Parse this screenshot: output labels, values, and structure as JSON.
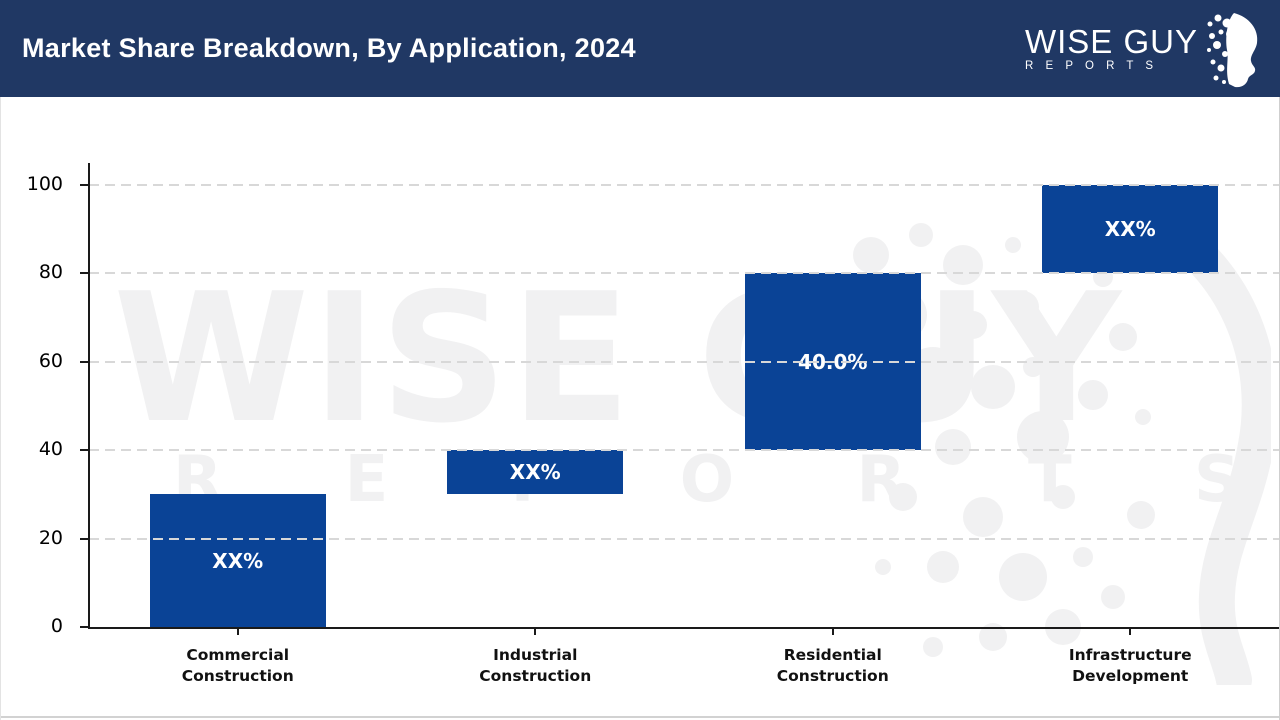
{
  "header": {
    "title": "Market Share Breakdown, By Application, 2024",
    "logo": {
      "line1": "WISE GUY",
      "line2": "R E P O R T S"
    }
  },
  "watermark": {
    "line1": "WISE GUY",
    "line2": "R E P O R T S"
  },
  "colors": {
    "header_bg": "#203864",
    "bar_fill": "#0a4396",
    "bar_label_text": "#ffffff",
    "gridline": "#d8d8d8",
    "axis": "#1a1a1a",
    "watermark": "#f1f1f2",
    "frame_line": "#d2d2d2"
  },
  "chart_data": {
    "type": "bar",
    "subtype": "waterfall-floating-bars",
    "title": "Market Share Breakdown, By Application, 2024",
    "categories": [
      "Commercial Construction",
      "Industrial Construction",
      "Residential Construction",
      "Infrastructure Development"
    ],
    "bars": [
      {
        "category": "Commercial Construction",
        "start": 0,
        "end": 30,
        "label": "XX%"
      },
      {
        "category": "Industrial Construction",
        "start": 30,
        "end": 40,
        "label": "XX%"
      },
      {
        "category": "Residential Construction",
        "start": 40,
        "end": 80,
        "label": "40.0%"
      },
      {
        "category": "Infrastructure Development",
        "start": 80,
        "end": 100,
        "label": "XX%"
      }
    ],
    "ylim": [
      0,
      100
    ],
    "yticks": [
      0,
      20,
      40,
      60,
      80,
      100
    ],
    "xlabel": "",
    "ylabel": "",
    "grid": "horizontal-dashed-over-bars",
    "legend": "none"
  }
}
